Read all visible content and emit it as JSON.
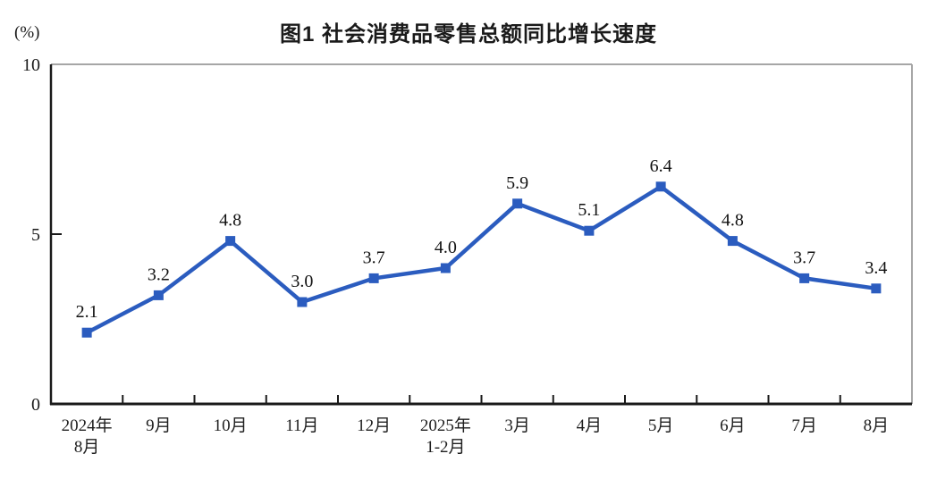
{
  "chart_data": {
    "type": "line",
    "title": "图1 社会消费品零售总额同比增长速度",
    "unit_label": "(%)",
    "categories": [
      "2024年\n8月",
      "9月",
      "10月",
      "11月",
      "12月",
      "2025年\n1-2月",
      "3月",
      "4月",
      "5月",
      "6月",
      "7月",
      "8月"
    ],
    "values": [
      2.1,
      3.2,
      4.8,
      3.0,
      3.7,
      4.0,
      5.9,
      5.1,
      6.4,
      4.8,
      3.7,
      3.4
    ],
    "data_labels": [
      "2.1",
      "3.2",
      "4.8",
      "3.0",
      "3.7",
      "4.0",
      "5.9",
      "5.1",
      "6.4",
      "4.8",
      "3.7",
      "3.4"
    ],
    "ylim": [
      0,
      10
    ],
    "yticks": [
      0,
      5,
      10
    ],
    "xlabel": "",
    "ylabel": "(%)",
    "grid": false,
    "legend": "none",
    "line_color": "#2b5cbf",
    "marker": "square",
    "axis_color": "#1a1a1a",
    "secondary_border_color": "#a6a6a6"
  }
}
